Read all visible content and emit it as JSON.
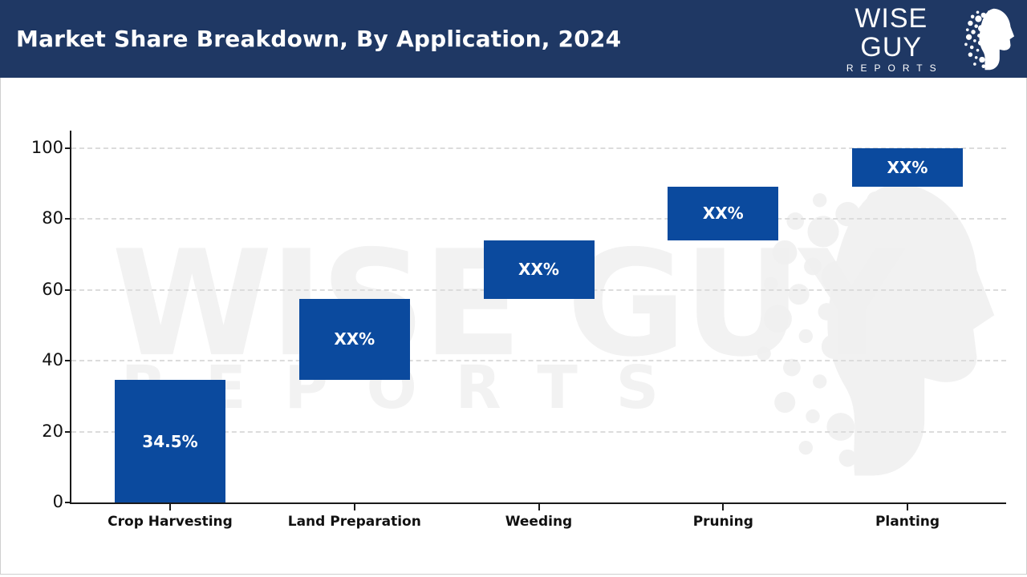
{
  "header": {
    "title": "Market Share Breakdown, By Application, 2024",
    "bg_color": "#1f3864",
    "logo": {
      "line1": "WISE GUY",
      "line2": "REPORTS"
    }
  },
  "watermark": {
    "line1": "WISE GUY",
    "line2": "REPORTS"
  },
  "chart_data": {
    "type": "bar",
    "subtype": "waterfall",
    "title": "Market Share Breakdown, By Application, 2024",
    "categories": [
      "Crop Harvesting",
      "Land Preparation",
      "Weeding",
      "Pruning",
      "Planting"
    ],
    "segments": [
      {
        "category": "Crop Harvesting",
        "start": 0,
        "end": 34.5,
        "label": "34.5%"
      },
      {
        "category": "Land Preparation",
        "start": 34.5,
        "end": 57.5,
        "label": "XX%"
      },
      {
        "category": "Weeding",
        "start": 57.5,
        "end": 74,
        "label": "XX%"
      },
      {
        "category": "Pruning",
        "start": 74,
        "end": 89,
        "label": "XX%"
      },
      {
        "category": "Planting",
        "start": 89,
        "end": 100,
        "label": "XX%"
      }
    ],
    "xlabel": "",
    "ylabel": "",
    "ylim": [
      0,
      104
    ],
    "yticks": [
      0,
      20,
      40,
      60,
      80,
      100
    ],
    "grid": "horizontal-dashed",
    "legend": "none",
    "bar_color": "#0b4a9e",
    "bar_label_color": "#ffffff",
    "grid_color": "#dcdcdc",
    "axis_color": "#1a1a1a"
  }
}
